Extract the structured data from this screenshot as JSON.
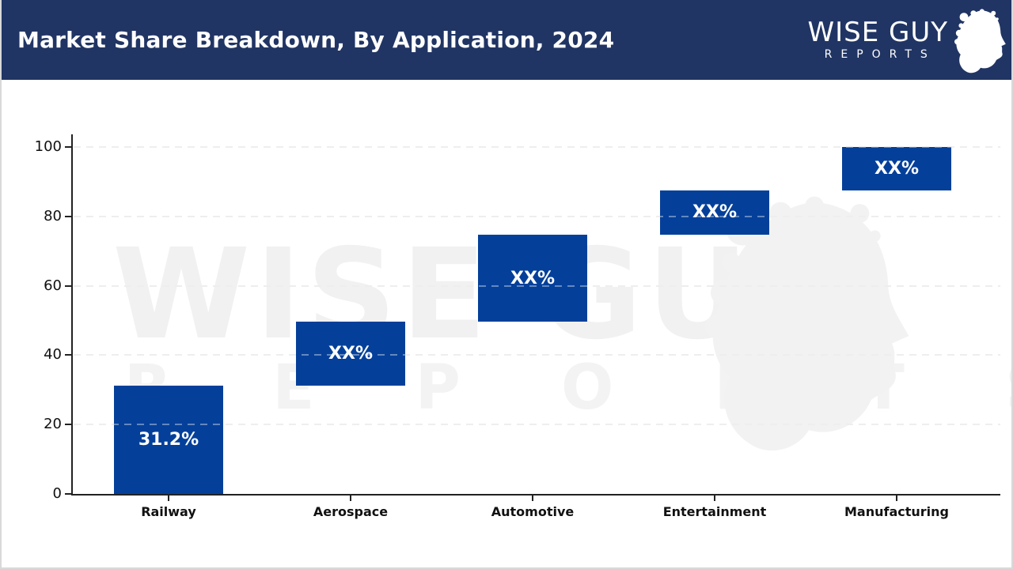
{
  "header": {
    "title": "Market Share Breakdown, By Application, 2024",
    "logo": {
      "line1": "WISE GUY",
      "line2": "REPORTS"
    }
  },
  "watermark": {
    "line1": "WISE GUY",
    "line2": "REPORTS"
  },
  "chart_data": {
    "type": "bar",
    "subtype": "waterfall",
    "title": "Market Share Breakdown, By Application, 2024",
    "categories": [
      "Railway",
      "Aerospace",
      "Automotive",
      "Entertainment",
      "Manufacturing"
    ],
    "series": [
      {
        "name": "Market Share",
        "segments": [
          {
            "category": "Railway",
            "start": 0,
            "end": 31.2,
            "label": "31.2%"
          },
          {
            "category": "Aerospace",
            "start": 31.2,
            "end": 49.6,
            "label": "XX%"
          },
          {
            "category": "Automotive",
            "start": 49.6,
            "end": 74.7,
            "label": "XX%"
          },
          {
            "category": "Entertainment",
            "start": 74.7,
            "end": 87.5,
            "label": "XX%"
          },
          {
            "category": "Manufacturing",
            "start": 87.5,
            "end": 100,
            "label": "XX%"
          }
        ]
      }
    ],
    "xlabel": "",
    "ylabel": "",
    "ylim": [
      0,
      100
    ],
    "yticks": [
      0,
      20,
      40,
      60,
      80,
      100
    ],
    "grid": "horizontal-dashed",
    "legend": "none",
    "bar_color": "#04409A",
    "bar_label_color": "#ffffff",
    "accent_navy": "#213564"
  }
}
